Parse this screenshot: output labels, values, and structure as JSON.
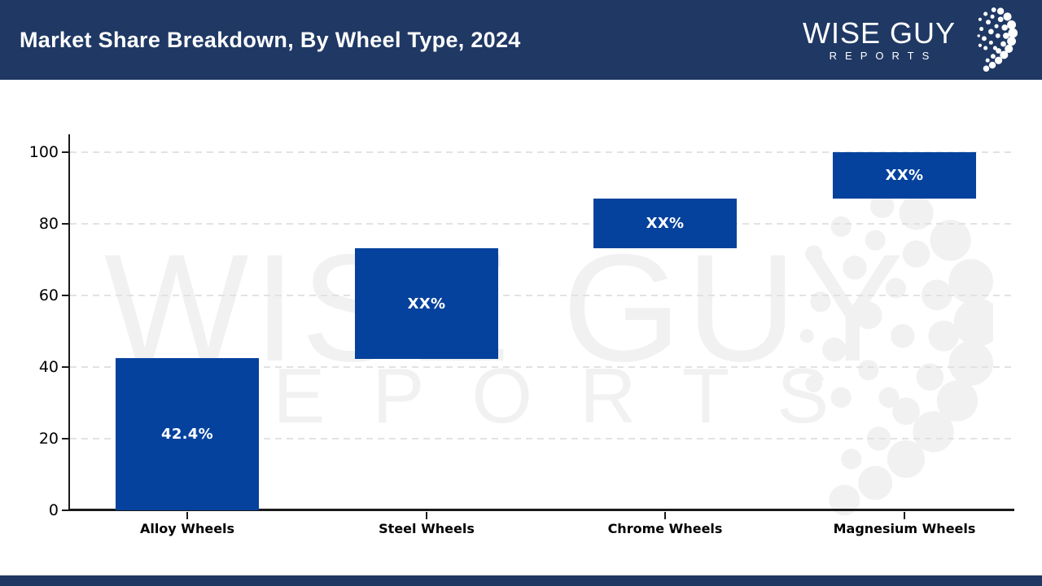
{
  "header": {
    "title": "Market Share Breakdown, By Wheel Type, 2024",
    "logo": {
      "line1": "WISE GUY",
      "line2": "REPORTS"
    },
    "bg_color": "#1F3864"
  },
  "watermark": {
    "line1": "WISE GUY",
    "line2": "REPORTS",
    "color": "#f1f1f1"
  },
  "chart_data": {
    "type": "bar",
    "subtype": "waterfall",
    "title": "Market Share Breakdown, By Wheel Type, 2024",
    "xlabel": "",
    "ylabel": "",
    "categories": [
      "Alloy Wheels",
      "Steel Wheels",
      "Chrome Wheels",
      "Magnesium Wheels"
    ],
    "bars": [
      {
        "category": "Alloy Wheels",
        "start": 0,
        "end": 42.4,
        "value": 42.4,
        "label": "42.4%"
      },
      {
        "category": "Steel Wheels",
        "start": 42.4,
        "end": 73.2,
        "value": 30.8,
        "label": "XX%"
      },
      {
        "category": "Chrome Wheels",
        "start": 73.2,
        "end": 87.0,
        "value": 13.8,
        "label": "XX%"
      },
      {
        "category": "Magnesium Wheels",
        "start": 87.0,
        "end": 100.0,
        "value": 13.0,
        "label": "XX%"
      }
    ],
    "yticks": [
      0,
      20,
      40,
      60,
      80,
      100
    ],
    "ylim": [
      0,
      105
    ],
    "grid": true,
    "grid_style": "dashed",
    "legend": false,
    "bar_color": "#05429D",
    "bar_label_color": "#FFFFFF",
    "axis_color": "#1a1a1a",
    "grid_color": "#e2e2e2"
  }
}
